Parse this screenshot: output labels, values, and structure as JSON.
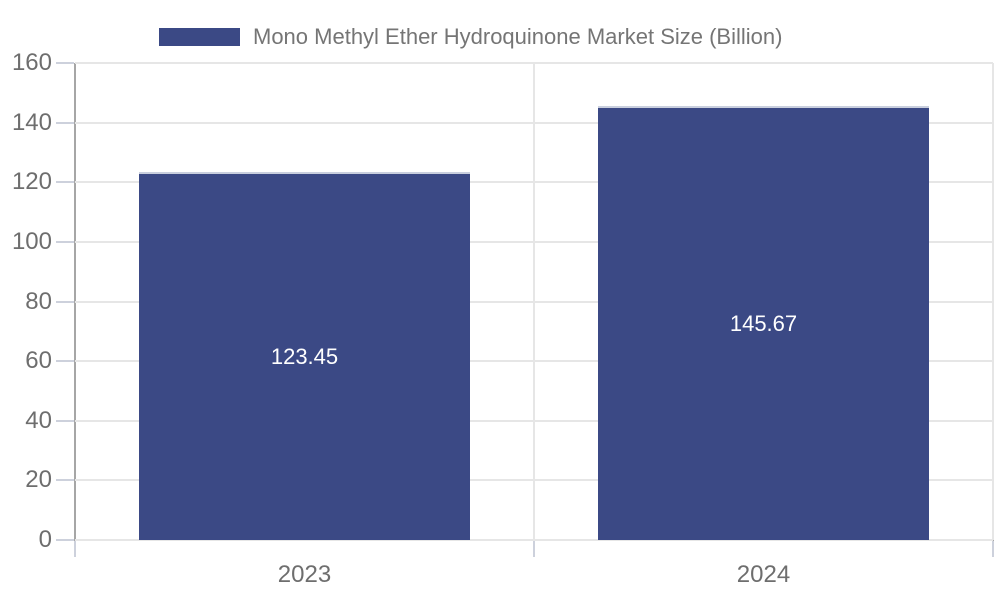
{
  "chart_data": {
    "type": "bar",
    "title": "Mono Methyl Ether Hydroquinone Market Size (Billion)",
    "legend_position": "top",
    "legend": [
      {
        "label": "Mono Methyl Ether Hydroquinone Market Size (Billion)",
        "color": "#3B4985"
      }
    ],
    "categories": [
      "2023",
      "2024"
    ],
    "series": [
      {
        "name": "Mono Methyl Ether Hydroquinone Market Size (Billion)",
        "values": [
          123.45,
          145.67
        ]
      }
    ],
    "value_labels": [
      "123.45",
      "145.67"
    ],
    "xlabel": "",
    "ylabel": "",
    "ylim": [
      0,
      160
    ],
    "yticks": [
      0,
      20,
      40,
      60,
      80,
      100,
      120,
      140,
      160
    ],
    "grid": true,
    "colors": {
      "bar": "#3B4985",
      "bar_top_edge": "#C9CFDE",
      "grid_line": "#E6E6E6",
      "axis_line": "#A6A6A6",
      "tick_mark": "#CDD1DC",
      "axis_label": "#6E6E6E",
      "legend_text": "#757575",
      "value_label": "#FFFFFF",
      "background": "#FFFFFF"
    }
  }
}
